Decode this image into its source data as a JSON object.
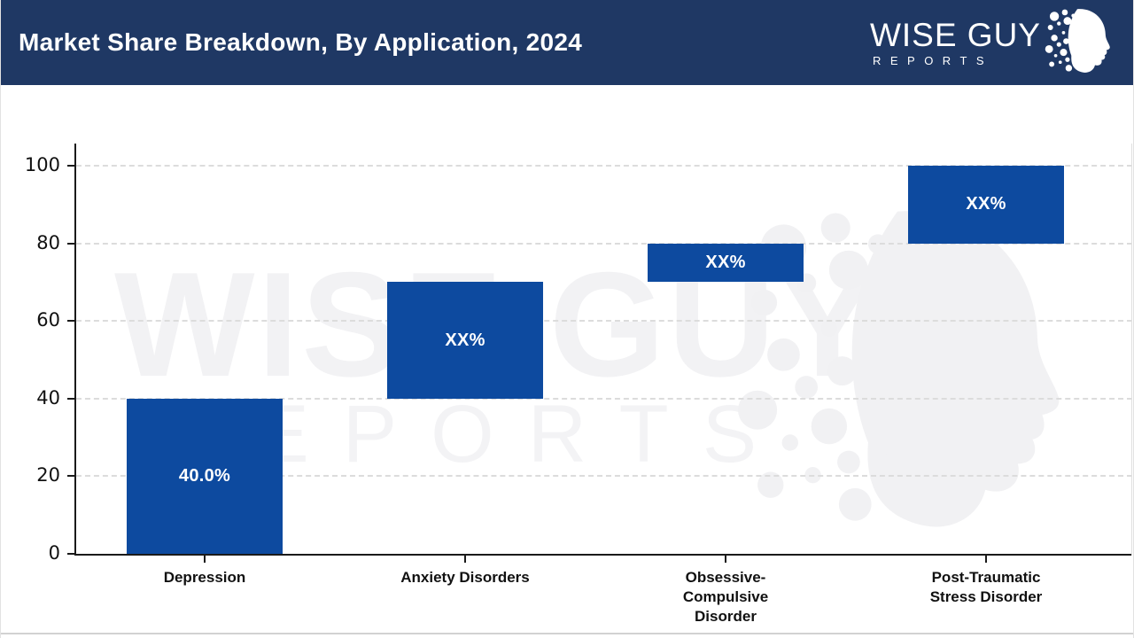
{
  "header": {
    "title": "Market Share Breakdown, By Application, 2024",
    "bg_color": "#1f3864",
    "logo": {
      "line1": "WISE GUY",
      "line2": "REPORTS"
    }
  },
  "watermark": {
    "line1": "WISE GUY",
    "line2": "REPORTS"
  },
  "chart_data": {
    "type": "bar",
    "subtype": "waterfall-segments",
    "title": "Market Share Breakdown, By Application, 2024",
    "categories": [
      "Depression",
      "Anxiety Disorders",
      "Obsessive-Compulsive Disorder",
      "Post-Traumatic Stress Disorder"
    ],
    "category_lines": [
      [
        "Depression"
      ],
      [
        "Anxiety Disorders"
      ],
      [
        "Obsessive-",
        "Compulsive",
        "Disorder"
      ],
      [
        "Post-Traumatic",
        "Stress Disorder"
      ]
    ],
    "segments": [
      {
        "category": "Depression",
        "start": 0,
        "end": 40,
        "value_label": "40.0%"
      },
      {
        "category": "Anxiety Disorders",
        "start": 40,
        "end": 70,
        "value_label": "XX%"
      },
      {
        "category": "Obsessive-Compulsive Disorder",
        "start": 70,
        "end": 80,
        "value_label": "XX%"
      },
      {
        "category": "Post-Traumatic Stress Disorder",
        "start": 80,
        "end": 100,
        "value_label": "XX%"
      }
    ],
    "y_ticks": [
      0,
      20,
      40,
      60,
      80,
      100
    ],
    "ylim": [
      0,
      106
    ],
    "xlabel": "",
    "ylabel": "",
    "legend": "none",
    "grid": "horizontal-dashed",
    "bar_color": "#0d4a9f",
    "axis_color": "#1a1a1a",
    "grid_color": "#dcdcdc",
    "value_label_color": "#ffffff"
  }
}
